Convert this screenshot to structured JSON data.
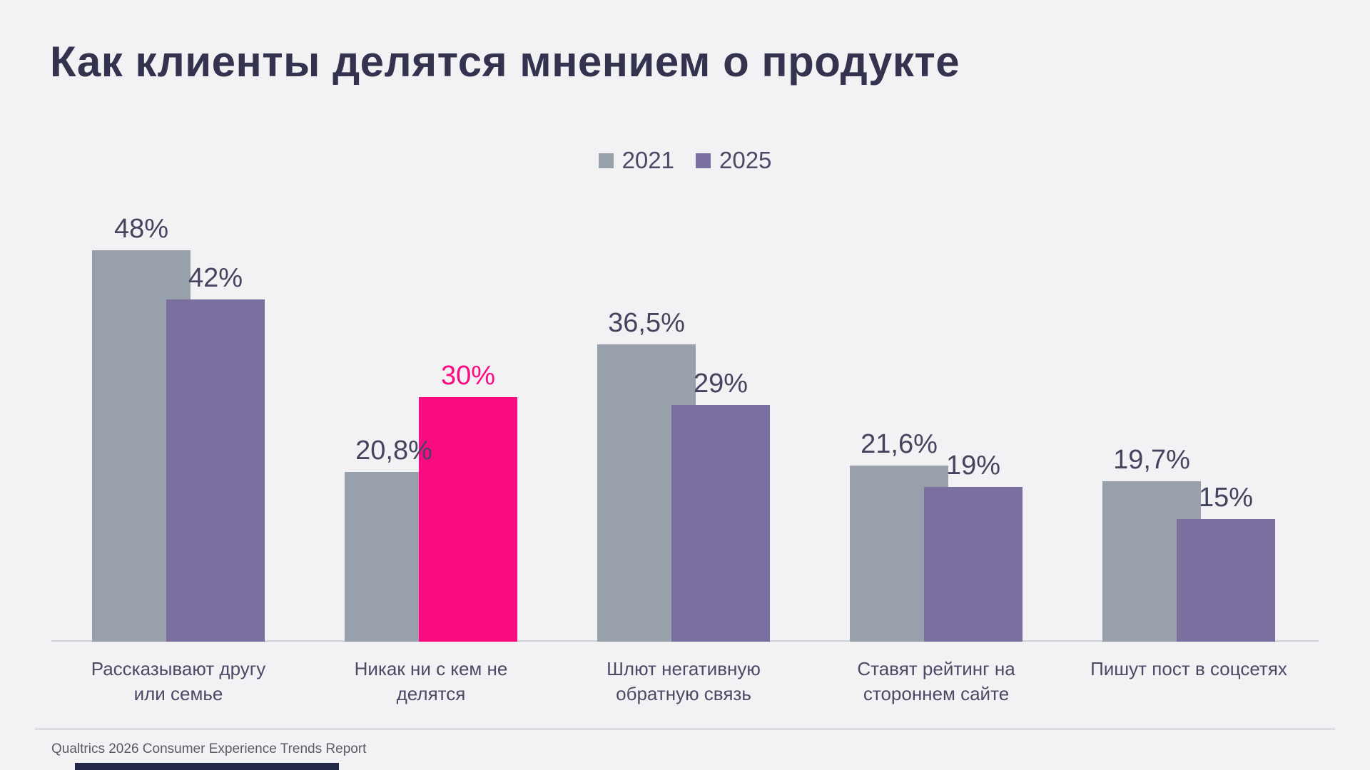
{
  "title": "Как клиенты делятся мнением о продукте",
  "footer": {
    "source": "Qualtrics 2026 Consumer Experience Trends Report"
  },
  "colors": {
    "background": "#f2f2f4",
    "title": "#34334f",
    "value-label": "#45445e",
    "category-label": "#4b4a64",
    "axis-line": "#cfcfd6",
    "divider": "#a8a8b0",
    "footer-text": "#5a5a64",
    "accent-bar": "#242848"
  },
  "chart_data": {
    "type": "bar",
    "title": "Как клиенты делятся мнением о продукте",
    "categories": [
      "Рассказывают другу или семье",
      "Никак ни с кем не делятся",
      "Шлют негативную обратную связь",
      "Ставят рейтинг на стороннем сайте",
      "Пишут пост в соцсетях"
    ],
    "categories_wrapped": [
      "Рассказывают другу\nили семье",
      "Никак ни с кем не\nделятся",
      "Шлют негативную\nобратную связь",
      "Ставят рейтинг на\nстороннем сайте",
      "Пишут пост в соцсетях"
    ],
    "series": [
      {
        "name": "2021",
        "color": "#98a0ab",
        "values": [
          48,
          20.8,
          36.5,
          21.6,
          19.7
        ],
        "labels": [
          "48%",
          "20,8%",
          "36,5%",
          "21,6%",
          "19,7%"
        ]
      },
      {
        "name": "2025",
        "color": "#7b6fa0",
        "values": [
          42,
          30,
          29,
          19,
          15
        ],
        "labels": [
          "42%",
          "30%",
          "29%",
          "19%",
          "15%"
        ],
        "highlight_index": 1,
        "highlight_color": "#fb0a82"
      }
    ],
    "ylim": [
      0,
      48
    ],
    "grid": false,
    "legend_position": "top-center"
  }
}
